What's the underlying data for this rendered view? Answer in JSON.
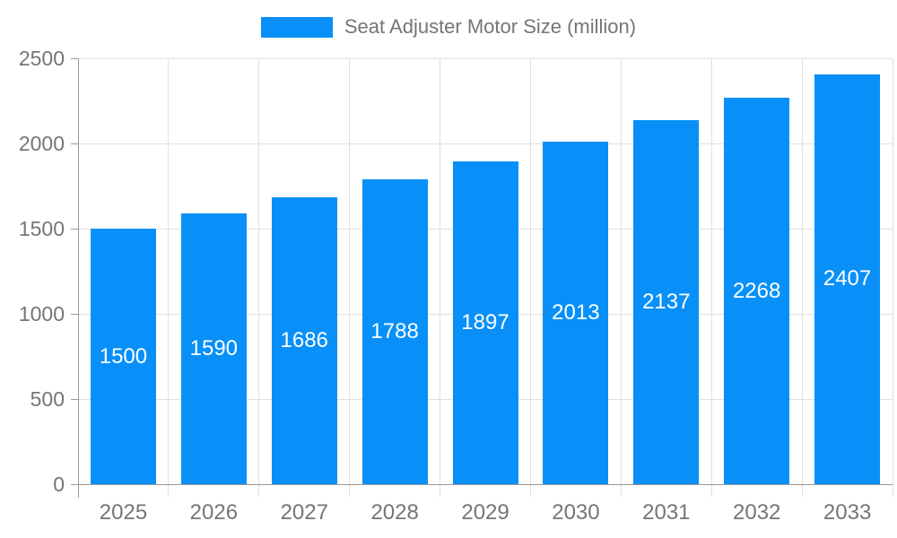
{
  "legend": {
    "label": "Seat Adjuster Motor Size (million)"
  },
  "chart_data": {
    "type": "bar",
    "title": "Seat Adjuster Motor Size (million)",
    "xlabel": "",
    "ylabel": "",
    "categories": [
      "2025",
      "2026",
      "2027",
      "2028",
      "2029",
      "2030",
      "2031",
      "2032",
      "2033"
    ],
    "values": [
      1500,
      1590,
      1686,
      1788,
      1897,
      2013,
      2137,
      2268,
      2407
    ],
    "ylim": [
      0,
      2500
    ],
    "yticks": [
      0,
      500,
      1000,
      1500,
      2000,
      2500
    ],
    "grid": true,
    "legend_position": "top",
    "colors": {
      "bar": "#0890F8",
      "axis": "#999999",
      "grid": "#e0e0e0",
      "text": "#757575",
      "value_text": "#ffffff"
    }
  }
}
